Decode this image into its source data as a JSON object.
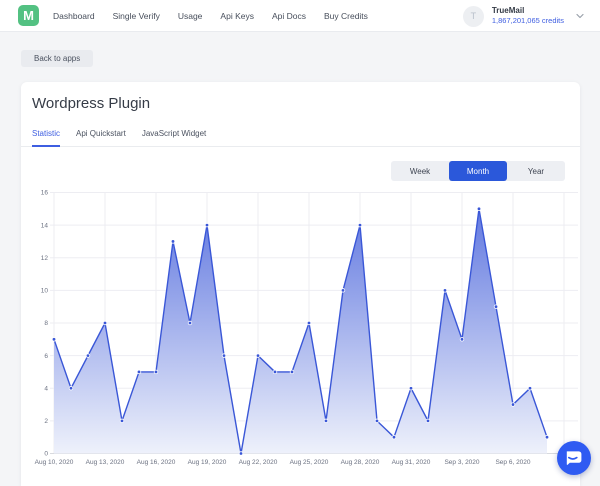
{
  "nav": {
    "logo_letter": "M",
    "items": [
      "Dashboard",
      "Single Verify",
      "Usage",
      "Api Keys",
      "Api Docs",
      "Buy Credits"
    ],
    "account": {
      "avatar_letter": "T",
      "name": "TrueMail",
      "credits": "1,867,201,065 credits"
    }
  },
  "back_button": {
    "label": "Back to apps"
  },
  "page": {
    "title": "Wordpress Plugin",
    "tabs": {
      "labels": [
        "Statistic",
        "Api Quickstart",
        "JavaScript Widget"
      ],
      "active_index": 0
    }
  },
  "range_toggle": {
    "options": [
      "Week",
      "Month",
      "Year"
    ],
    "active_index": 1
  },
  "chart_data": {
    "type": "area",
    "title": "",
    "series": [
      {
        "values": [
          7,
          4,
          6,
          8,
          2,
          5,
          5,
          13,
          8,
          14,
          6,
          0,
          6,
          5,
          5,
          8,
          2,
          10,
          14,
          2,
          1,
          4,
          2,
          10,
          7,
          15,
          9,
          3,
          4,
          1
        ]
      }
    ],
    "x_tick_labels": [
      "Aug 10, 2020",
      "Aug 13, 2020",
      "Aug 16, 2020",
      "Aug 19, 2020",
      "Aug 22, 2020",
      "Aug 25, 2020",
      "Aug 28, 2020",
      "Aug 31, 2020",
      "Sep 3, 2020",
      "Sep 6, 2020"
    ],
    "x_tick_every": 3,
    "y_ticks": [
      0,
      2,
      4,
      6,
      8,
      10,
      12,
      14,
      16
    ],
    "ylim": [
      0,
      16
    ],
    "grid": true,
    "legend": false
  },
  "colors": {
    "accent": "#3e5ee1",
    "accent_strong": "#2b58da",
    "logo_green": "#53c182",
    "line": "#3a57d7",
    "area_top": "#5971de",
    "area_bottom": "#eef1fb",
    "grid": "#ededf2",
    "axis": "#d8dadf",
    "tick_text": "#6a7080",
    "chat_blue": "#2f5bf2"
  },
  "chat": {
    "icon": "chat-smile-icon"
  }
}
